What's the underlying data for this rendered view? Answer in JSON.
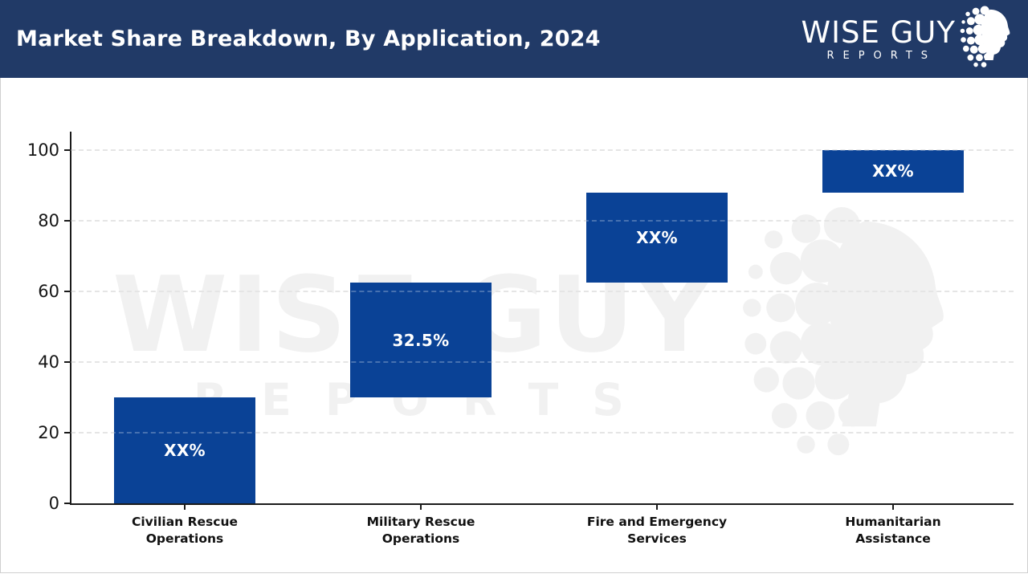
{
  "header": {
    "title": "Market Share Breakdown, By Application, 2024",
    "bg_color": "#213A67",
    "logo": {
      "wordmark": "WISE GUY",
      "subtext": "REPORTS"
    }
  },
  "watermark": {
    "wordmark": "WISE GUY",
    "subtext": "REPORTS"
  },
  "chart_data": {
    "type": "bar",
    "variant": "floating-waterfall",
    "title": "Market Share Breakdown, By Application, 2024",
    "categories": [
      "Civilian Rescue Operations",
      "Military Rescue Operations",
      "Fire and Emergency Services",
      "Humanitarian Assistance"
    ],
    "segments": [
      {
        "category": "Civilian Rescue Operations",
        "start": 0,
        "end": 30,
        "value": 30,
        "label": "XX%"
      },
      {
        "category": "Military Rescue Operations",
        "start": 30,
        "end": 62.5,
        "value": 32.5,
        "label": "32.5%"
      },
      {
        "category": "Fire and Emergency Services",
        "start": 62.5,
        "end": 88,
        "value": 25.5,
        "label": "XX%"
      },
      {
        "category": "Humanitarian Assistance",
        "start": 88,
        "end": 100,
        "value": 12,
        "label": "XX%"
      }
    ],
    "bar_labels": [
      "XX%",
      "32.5%",
      "XX%",
      "XX%"
    ],
    "x_tick_labels_two_line": [
      [
        "Civilian Rescue",
        "Operations"
      ],
      [
        "Military Rescue",
        "Operations"
      ],
      [
        "Fire and Emergency",
        "Services"
      ],
      [
        "Humanitarian",
        "Assistance"
      ]
    ],
    "xlabel": "",
    "ylabel": "",
    "ylim": [
      0,
      100
    ],
    "yticks": [
      0,
      20,
      40,
      60,
      80,
      100
    ],
    "grid": "horizontal-dashed",
    "legend": "none",
    "bar_color": "#0A4296",
    "bar_label_color": "#FFFFFF"
  }
}
